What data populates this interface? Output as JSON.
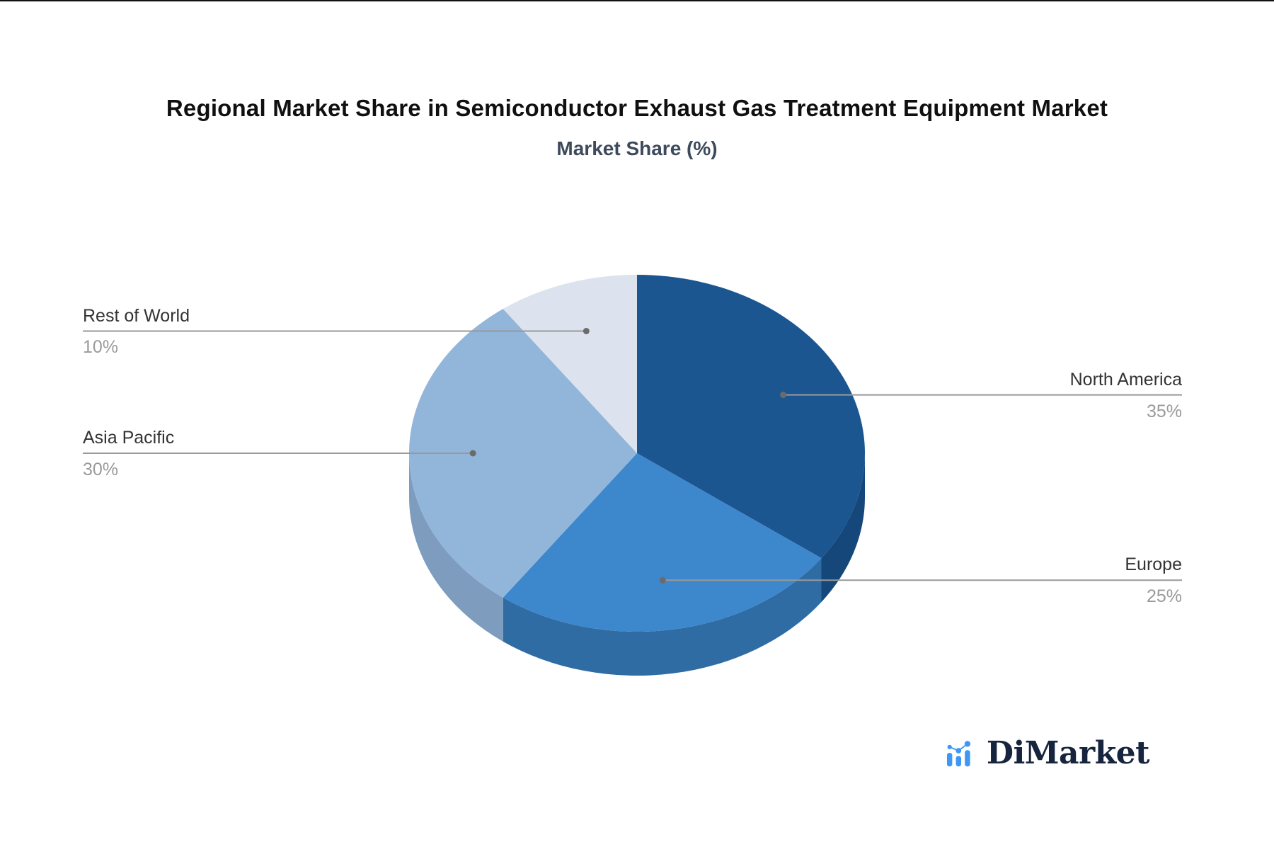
{
  "page": {
    "background": "#ffffff"
  },
  "chart_data": {
    "type": "pie",
    "title": "Regional Market Share in Semiconductor Exhaust Gas Treatment Equipment Market",
    "subtitle": "Market Share (%)",
    "unit": "%",
    "effect": "3d",
    "start_angle_deg": 0,
    "direction": "clockwise",
    "legend_position": "none",
    "slices": [
      {
        "label": "North America",
        "value": 35,
        "pct_label": "35%",
        "color": "#1B5691",
        "side_color": "#15477A",
        "label_side": "right"
      },
      {
        "label": "Europe",
        "value": 25,
        "pct_label": "25%",
        "color": "#3D87CC",
        "side_color": "#2F6CA4",
        "label_side": "right"
      },
      {
        "label": "Asia Pacific",
        "value": 30,
        "pct_label": "30%",
        "color": "#92B5DA",
        "side_color": "#7E9CBE",
        "label_side": "left"
      },
      {
        "label": "Rest of World",
        "value": 10,
        "pct_label": "10%",
        "color": "#DCE3EF",
        "side_color": "#B9C5D8",
        "label_side": "left"
      }
    ],
    "style": {
      "title_color": "#101010",
      "subtitle_color": "#3D4A5C",
      "label_color": "#333333",
      "pct_color": "#9A9A9A",
      "leader_line_color": "#999999",
      "leader_dot_color": "#6B6B6B"
    }
  },
  "branding": {
    "logo_text": "DiMarket",
    "logo_icon": "bar-line-chart-icon",
    "logo_text_color": "#16243E",
    "logo_icon_color": "#3E97F5"
  }
}
